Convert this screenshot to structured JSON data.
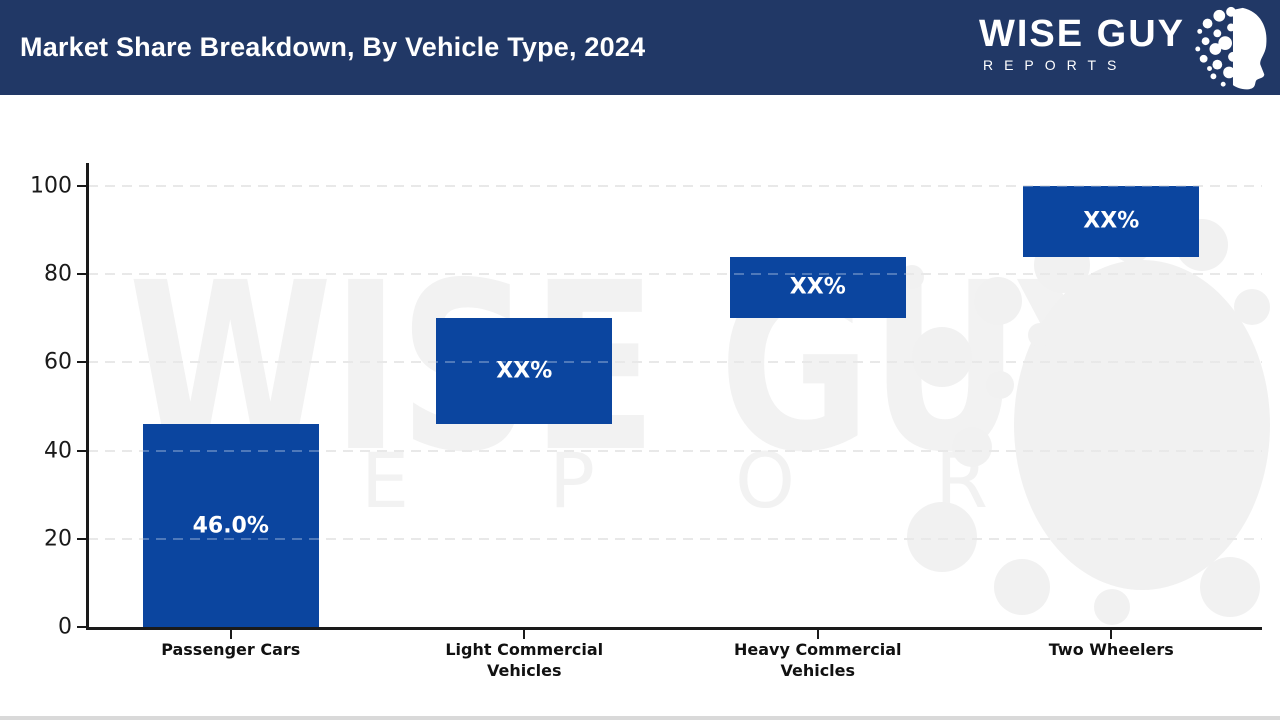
{
  "header": {
    "title": "Market Share Breakdown, By Vehicle Type, 2024",
    "logo": {
      "line1": "WISE GUY",
      "line2": "REPORTS"
    }
  },
  "watermark": {
    "line1": "WISE GUY",
    "line2": "REPORTS"
  },
  "colors": {
    "header_bg": "#213866",
    "bar": "#0b459f",
    "grid": "#e0e0e0",
    "watermark": "#f2f2f2",
    "bottom_line": "#d9d9d9"
  },
  "chart_data": {
    "type": "bar",
    "subtype": "waterfall",
    "title": "Market Share Breakdown, By Vehicle Type, 2024",
    "xlabel": "",
    "ylabel": "",
    "ylim": [
      0,
      105
    ],
    "yticks": [
      0,
      20,
      40,
      60,
      80,
      100
    ],
    "grid": true,
    "legend": false,
    "categories": [
      "Passenger Cars",
      "Light Commercial\nVehicles",
      "Heavy Commercial\nVehicles",
      "Two Wheelers"
    ],
    "segments": [
      {
        "category": "Passenger Cars",
        "start": 0,
        "end": 46,
        "label": "46.0%"
      },
      {
        "category": "Light Commercial\nVehicles",
        "start": 46,
        "end": 70,
        "label": "XX%"
      },
      {
        "category": "Heavy Commercial\nVehicles",
        "start": 70,
        "end": 84,
        "label": "XX%"
      },
      {
        "category": "Two Wheelers",
        "start": 84,
        "end": 100,
        "label": "XX%"
      }
    ]
  }
}
